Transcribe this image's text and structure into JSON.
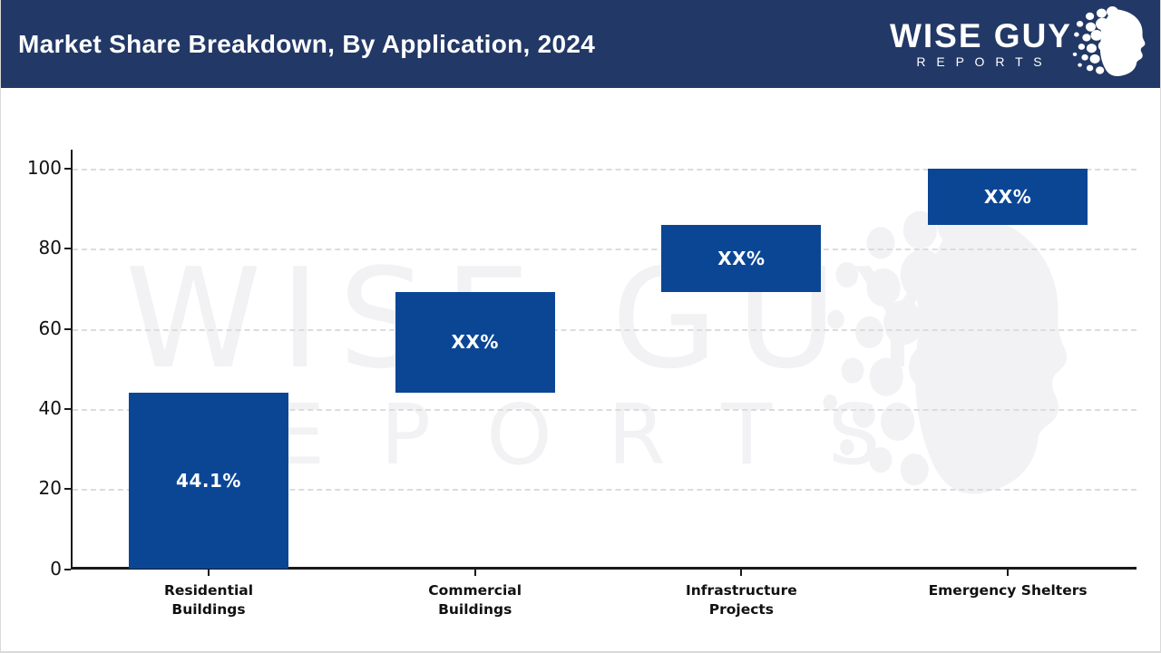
{
  "page": {
    "background": "#ffffff",
    "frame_color": "#d9d9d9"
  },
  "header": {
    "title": "Market Share Breakdown, By Application, 2024",
    "background": "#223866",
    "logo": {
      "line1": "WISE GUY",
      "line2": "R E P O R T S"
    }
  },
  "watermark": {
    "line1": "WISE GUY",
    "line2": "R E P O R T S"
  },
  "chart_data": {
    "type": "bar",
    "subtype": "waterfall",
    "title": "Market Share Breakdown, By Application, 2024",
    "categories": [
      "Residential Buildings",
      "Commercial Buildings",
      "Infrastructure Projects",
      "Emergency Shelters"
    ],
    "category_lines": [
      [
        "Residential",
        "Buildings"
      ],
      [
        "Commercial",
        "Buildings"
      ],
      [
        "Infrastructure",
        "Projects"
      ],
      [
        "Emergency Shelters"
      ]
    ],
    "segments": [
      {
        "category": "Residential Buildings",
        "label": "44.1%",
        "start": 0,
        "end": 44.1
      },
      {
        "category": "Commercial Buildings",
        "label": "XX%",
        "start": 44.1,
        "end": 69.2
      },
      {
        "category": "Infrastructure Projects",
        "label": "XX%",
        "start": 69.2,
        "end": 86.0
      },
      {
        "category": "Emergency Shelters",
        "label": "XX%",
        "start": 86.0,
        "end": 100.0
      }
    ],
    "bar_color": "#0b4695",
    "bar_label_color": "#ffffff",
    "ylim": [
      0,
      100
    ],
    "yticks": [
      0,
      20,
      40,
      60,
      80,
      100
    ],
    "grid": "dashed-horizontal",
    "legend": "none",
    "xlabel": "",
    "ylabel": ""
  }
}
